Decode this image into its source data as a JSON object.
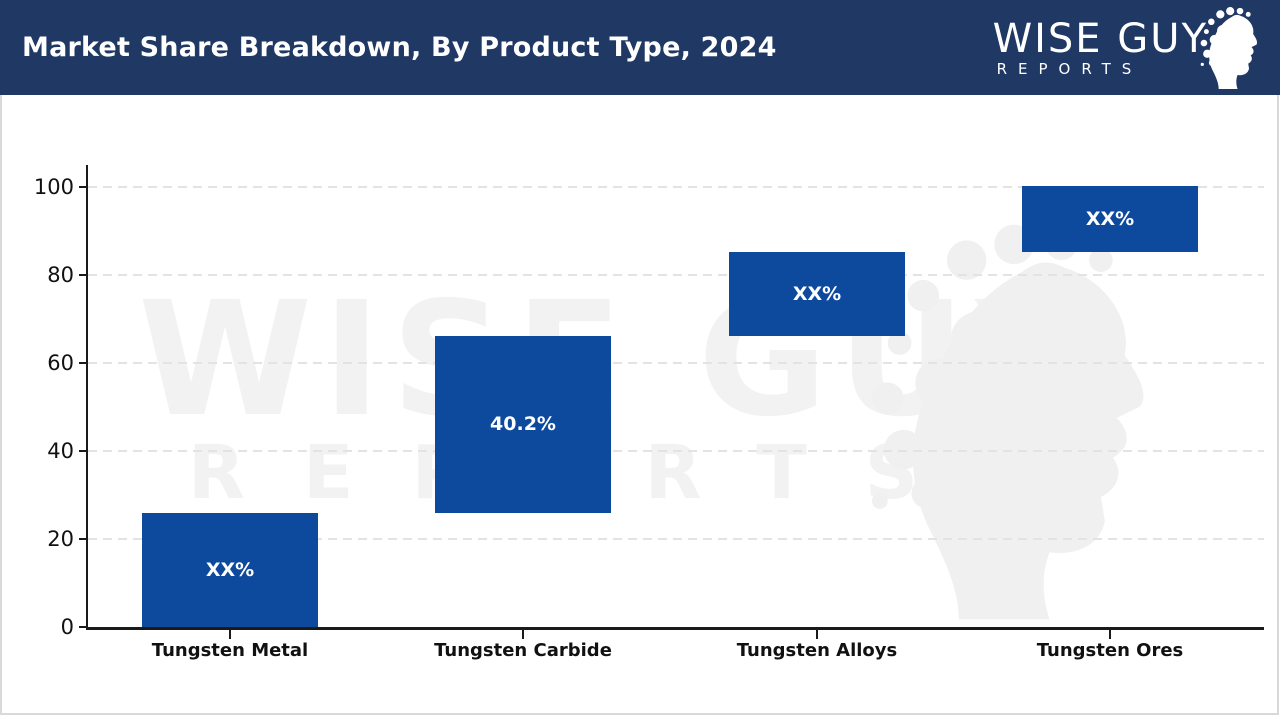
{
  "header": {
    "title": "Market Share Breakdown, By Product Type, 2024",
    "bg_color": "#1F3864",
    "logo": {
      "line1": "WISE GUY",
      "line2": "REPORTS"
    }
  },
  "watermark": {
    "line1": "WISE GUY",
    "line2": "REPORTS"
  },
  "chart_data": {
    "type": "bar",
    "subtype": "floating-segment-waterfall",
    "title": "Market Share Breakdown, By Product Type, 2024",
    "categories": [
      "Tungsten Metal",
      "Tungsten Carbide",
      "Tungsten Alloys",
      "Tungsten Ores"
    ],
    "segments": [
      {
        "category": "Tungsten Metal",
        "start": 0,
        "end": 26,
        "label": "XX%"
      },
      {
        "category": "Tungsten Carbide",
        "start": 26,
        "end": 66.2,
        "label": "40.2%"
      },
      {
        "category": "Tungsten Alloys",
        "start": 66.2,
        "end": 85.3,
        "label": "XX%"
      },
      {
        "category": "Tungsten Ores",
        "start": 85.3,
        "end": 100.2,
        "label": "XX%"
      }
    ],
    "yticks": [
      0,
      20,
      40,
      60,
      80,
      100
    ],
    "ylim": [
      0,
      105
    ],
    "xlabel": "",
    "ylabel": "",
    "grid": "horizontal-dashed",
    "legend": "none",
    "bar_color": "#0D4A9E",
    "bar_label_color": "#ffffff",
    "axis_color": "#1a1a1a"
  }
}
